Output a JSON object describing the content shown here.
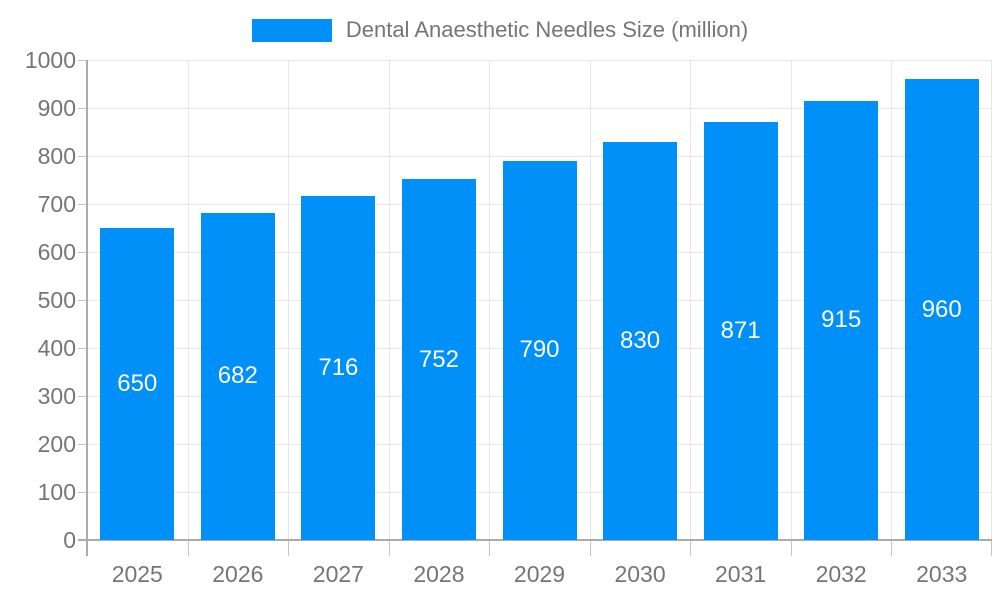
{
  "legend": {
    "label": "Dental Anaesthetic Needles Size (million)"
  },
  "chart_data": {
    "type": "bar",
    "title": "Dental Anaesthetic Needles Size (million)",
    "categories": [
      "2025",
      "2026",
      "2027",
      "2028",
      "2029",
      "2030",
      "2031",
      "2032",
      "2033"
    ],
    "values": [
      650,
      682,
      716,
      752,
      790,
      830,
      871,
      915,
      960
    ],
    "value_labels": [
      "650",
      "682",
      "716",
      "752",
      "790",
      "830",
      "871",
      "915",
      "960"
    ],
    "xlabel": "",
    "ylabel": "",
    "ylim": [
      0,
      1000
    ],
    "y_ticks": [
      0,
      100,
      200,
      300,
      400,
      500,
      600,
      700,
      800,
      900,
      1000
    ],
    "grid": "horizontal lines at every 100 plus vertical lines at category boundaries",
    "legend_position": "top-center",
    "colors": {
      "bar": "#0190f8",
      "grid": "#e6e6e6",
      "axis_line": "#ababab",
      "tick": "#c4c4c4",
      "axis_label": "#757575",
      "legend_text": "#757575",
      "value_label": "#ffffff",
      "background": "#ffffff"
    }
  }
}
